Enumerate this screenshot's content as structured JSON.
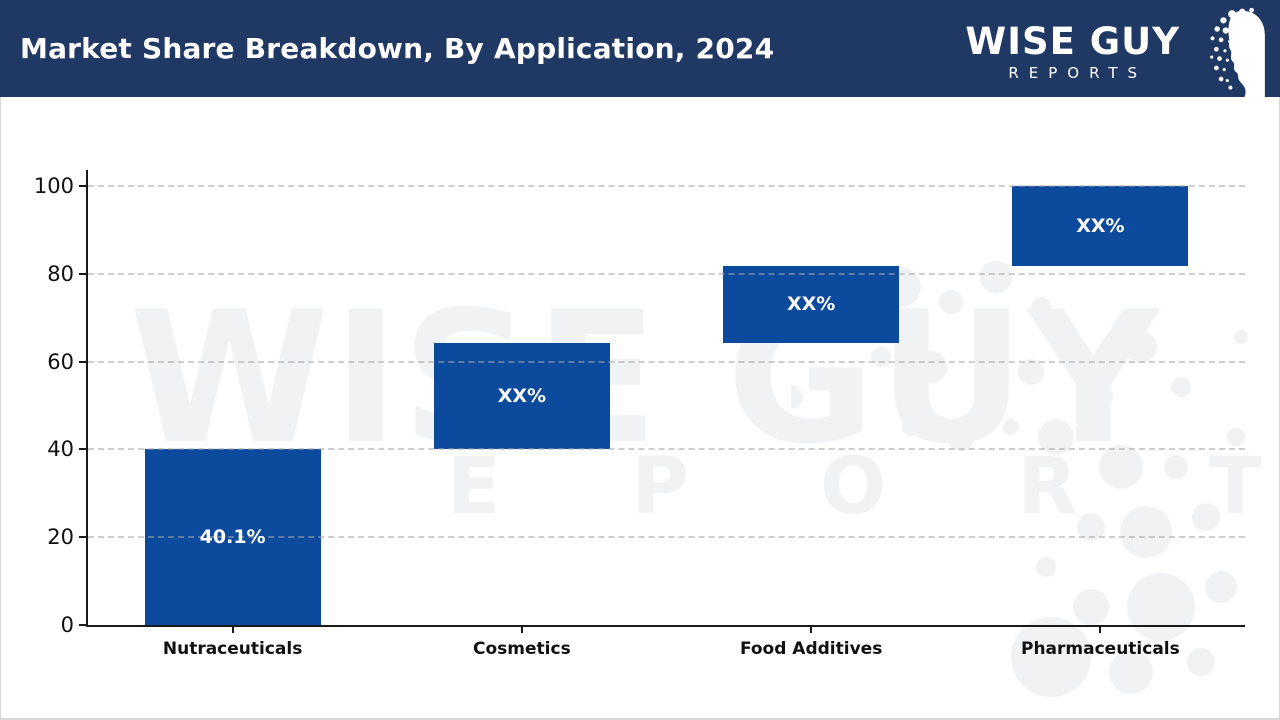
{
  "header": {
    "title": "Market Share Breakdown, By Application, 2024",
    "logo_line1": "WISE GUY",
    "logo_line2": "REPORTS"
  },
  "watermark": {
    "line1": "WISE GUY",
    "line2": "R E P O R T S"
  },
  "chart_data": {
    "type": "bar",
    "subtype": "waterfall-segments",
    "title": "Market Share Breakdown, By Application, 2024",
    "categories": [
      "Nutraceuticals",
      "Cosmetics",
      "Food Additives",
      "Pharmaceuticals"
    ],
    "segments": [
      {
        "category": "Nutraceuticals",
        "start": 0,
        "end": 40.1,
        "label": "40.1%"
      },
      {
        "category": "Cosmetics",
        "start": 40.1,
        "end": 64.3,
        "label": "XX%"
      },
      {
        "category": "Food Additives",
        "start": 64.3,
        "end": 81.8,
        "label": "XX%"
      },
      {
        "category": "Pharmaceuticals",
        "start": 81.8,
        "end": 100,
        "label": "XX%"
      }
    ],
    "segment_sizes_pct": [
      40.1,
      24.2,
      17.5,
      18.2
    ],
    "xlabel": "",
    "ylabel": "",
    "ylim": [
      0,
      100
    ],
    "yticks": [
      0,
      20,
      40,
      60,
      80,
      100
    ],
    "grid": "horizontal-dashed",
    "legend_position": "none",
    "colors": {
      "bar": "#0c4a9e",
      "bar_label": "#ffffff",
      "header_bg": "#203864",
      "axis": "#1a1a1a",
      "watermark": "#f1f2f4"
    }
  }
}
